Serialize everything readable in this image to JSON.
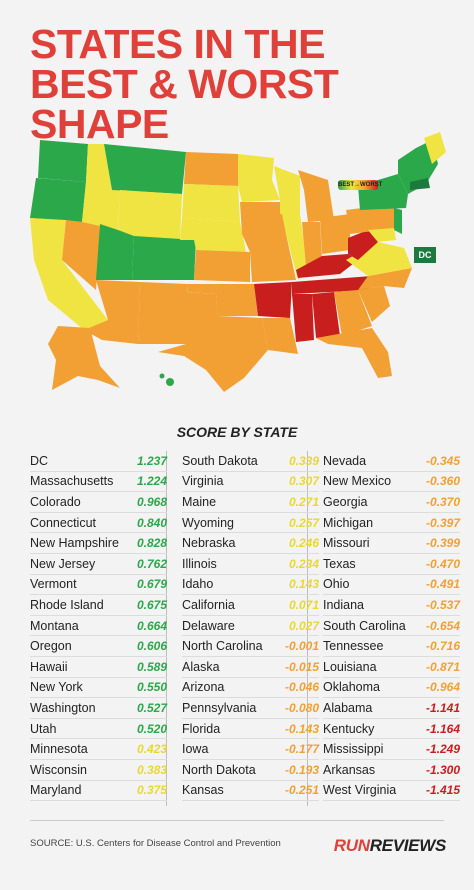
{
  "header": {
    "title_line1": "STATES IN THE",
    "title_line2": "BEST & WORST SHAPE"
  },
  "map": {
    "legend_label": "BEST→WORST",
    "dc_label": "DC",
    "colors": {
      "dark_green": "#1d7a3e",
      "green": "#2aa84a",
      "yellow": "#f0e442",
      "orange": "#f2a033",
      "red": "#c81e1e"
    }
  },
  "subtitle": "SCORE BY STATE",
  "columns": [
    [
      {
        "state": "DC",
        "score": "1.237",
        "color": "#2aa84a"
      },
      {
        "state": "Massachusetts",
        "score": "1.224",
        "color": "#2aa84a"
      },
      {
        "state": "Colorado",
        "score": "0.968",
        "color": "#2aa84a"
      },
      {
        "state": "Connecticut",
        "score": "0.840",
        "color": "#2aa84a"
      },
      {
        "state": "New Hampshire",
        "score": "0.828",
        "color": "#2aa84a"
      },
      {
        "state": "New Jersey",
        "score": "0.762",
        "color": "#2aa84a"
      },
      {
        "state": "Vermont",
        "score": "0.679",
        "color": "#2aa84a"
      },
      {
        "state": "Rhode Island",
        "score": "0.675",
        "color": "#2aa84a"
      },
      {
        "state": "Montana",
        "score": "0.664",
        "color": "#2aa84a"
      },
      {
        "state": "Oregon",
        "score": "0.606",
        "color": "#2aa84a"
      },
      {
        "state": "Hawaii",
        "score": "0.589",
        "color": "#2aa84a"
      },
      {
        "state": "New York",
        "score": "0.550",
        "color": "#2aa84a"
      },
      {
        "state": "Washington",
        "score": "0.527",
        "color": "#2aa84a"
      },
      {
        "state": "Utah",
        "score": "0.520",
        "color": "#2aa84a"
      },
      {
        "state": "Minnesota",
        "score": "0.423",
        "color": "#e8d830"
      },
      {
        "state": "Wisconsin",
        "score": "0.383",
        "color": "#e8d830"
      },
      {
        "state": "Maryland",
        "score": "0.375",
        "color": "#e8d830"
      }
    ],
    [
      {
        "state": "South Dakota",
        "score": "0.339",
        "color": "#e8d830"
      },
      {
        "state": "Virginia",
        "score": "0.307",
        "color": "#e8d830"
      },
      {
        "state": "Maine",
        "score": "0.271",
        "color": "#e8d830"
      },
      {
        "state": "Wyoming",
        "score": "0.257",
        "color": "#e8d830"
      },
      {
        "state": "Nebraska",
        "score": "0.246",
        "color": "#e8d830"
      },
      {
        "state": "Illinois",
        "score": "0.234",
        "color": "#e8d830"
      },
      {
        "state": "Idaho",
        "score": "0.143",
        "color": "#e8d830"
      },
      {
        "state": "California",
        "score": "0.071",
        "color": "#e8d830"
      },
      {
        "state": "Delaware",
        "score": "0.027",
        "color": "#e8d830"
      },
      {
        "state": "North Carolina",
        "score": "-0.001",
        "color": "#f2a033"
      },
      {
        "state": "Alaska",
        "score": "-0.015",
        "color": "#f2a033"
      },
      {
        "state": "Arizona",
        "score": "-0.046",
        "color": "#f2a033"
      },
      {
        "state": "Pennsylvania",
        "score": "-0.080",
        "color": "#f2a033"
      },
      {
        "state": "Florida",
        "score": "-0.143",
        "color": "#f2a033"
      },
      {
        "state": "Iowa",
        "score": "-0.177",
        "color": "#f2a033"
      },
      {
        "state": "North Dakota",
        "score": "-0.193",
        "color": "#f2a033"
      },
      {
        "state": "Kansas",
        "score": "-0.251",
        "color": "#f2a033"
      }
    ],
    [
      {
        "state": "Nevada",
        "score": "-0.345",
        "color": "#f2a033"
      },
      {
        "state": "New Mexico",
        "score": "-0.360",
        "color": "#f2a033"
      },
      {
        "state": "Georgia",
        "score": "-0.370",
        "color": "#f2a033"
      },
      {
        "state": "Michigan",
        "score": "-0.397",
        "color": "#f2a033"
      },
      {
        "state": "Missouri",
        "score": "-0.399",
        "color": "#f2a033"
      },
      {
        "state": "Texas",
        "score": "-0.470",
        "color": "#f2a033"
      },
      {
        "state": "Ohio",
        "score": "-0.491",
        "color": "#f2a033"
      },
      {
        "state": "Indiana",
        "score": "-0.537",
        "color": "#f2a033"
      },
      {
        "state": "South Carolina",
        "score": "-0.654",
        "color": "#f2a033"
      },
      {
        "state": "Tennessee",
        "score": "-0.716",
        "color": "#f2a033"
      },
      {
        "state": "Louisiana",
        "score": "-0.871",
        "color": "#f2a033"
      },
      {
        "state": "Oklahoma",
        "score": "-0.964",
        "color": "#f2a033"
      },
      {
        "state": "Alabama",
        "score": "-1.141",
        "color": "#c81e1e"
      },
      {
        "state": "Kentucky",
        "score": "-1.164",
        "color": "#c81e1e"
      },
      {
        "state": "Mississippi",
        "score": "-1.249",
        "color": "#c81e1e"
      },
      {
        "state": "Arkansas",
        "score": "-1.300",
        "color": "#c81e1e"
      },
      {
        "state": "West Virginia",
        "score": "-1.415",
        "color": "#c81e1e"
      }
    ]
  ],
  "footer": {
    "source": "SOURCE: U.S. Centers for Disease Control and Prevention",
    "logo_run": "RUN",
    "logo_reviews": "REVIEWS"
  }
}
